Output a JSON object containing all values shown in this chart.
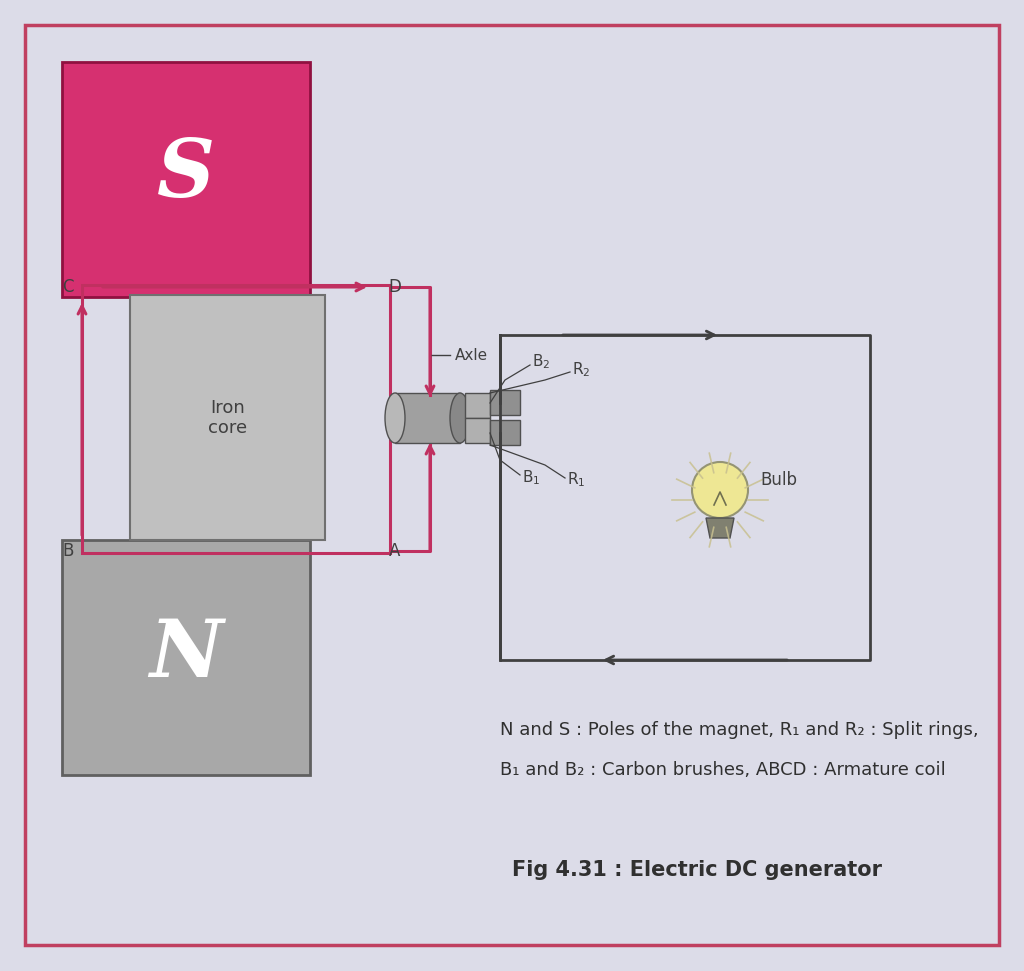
{
  "bg_color": "#dcdce8",
  "border_color": "#c04060",
  "title": "Fig 4.31 : Electric DC generator",
  "caption_line1": "N and S : Poles of the magnet, R₁ and R₂ : Split rings,",
  "caption_line2": "B₁ and B₂ : Carbon brushes, ABCD : Armature coil",
  "S_color": "#d63070",
  "N_color": "#a8a8a8",
  "iron_core_color": "#c0c0c0",
  "circuit_color": "#c03060",
  "brush_color": "#909090",
  "axle_color": "#909090",
  "ext_circuit_color": "#404040"
}
